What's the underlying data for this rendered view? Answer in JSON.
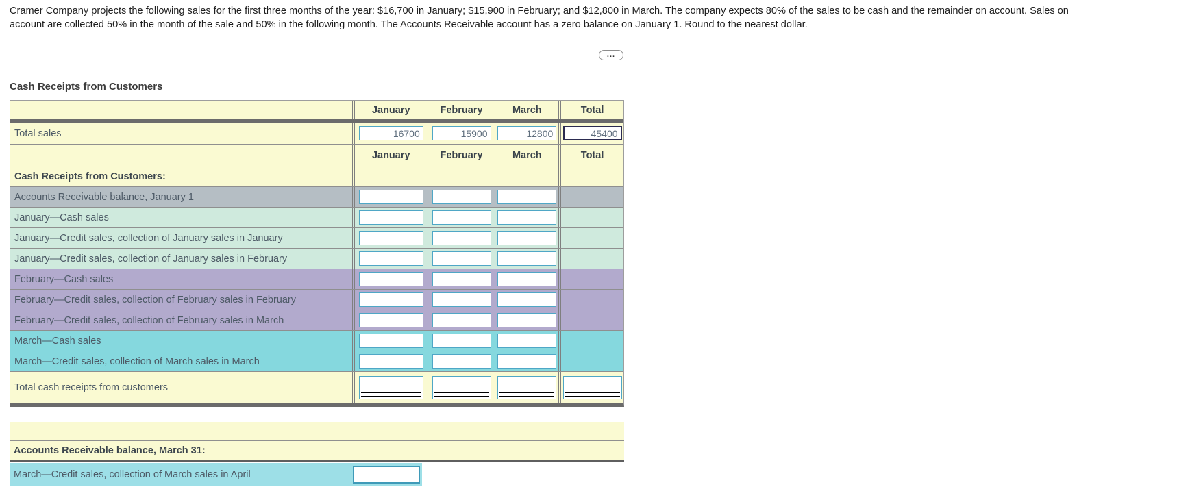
{
  "problem": {
    "line1": "Cramer Company projects the following sales for the first three months of the year: $16,700 in January; $15,900 in February; and $12,800 in March. The company expects 80% of the sales to be cash and the remainder on account. Sales on",
    "line2": "account are collected 50% in the month of the sale and 50% in the following month. The Accounts Receivable account has a zero balance on January 1. Round to the nearest dollar."
  },
  "divider": {
    "ellipsis_label": "..."
  },
  "table": {
    "title": "Cash Receipts from Customers",
    "columns": [
      "January",
      "February",
      "March",
      "Total"
    ],
    "total_sales": {
      "label": "Total sales",
      "january": "16700",
      "february": "15900",
      "march": "12800",
      "total": "45400"
    },
    "section_label": "Cash Receipts from Customers:",
    "rows": [
      {
        "label": "Accounts Receivable balance, January 1",
        "tone": "gray"
      },
      {
        "label": "January—Cash sales",
        "tone": "green"
      },
      {
        "label": "January—Credit sales, collection of January sales in January",
        "tone": "green"
      },
      {
        "label": "January—Credit sales, collection of January sales in February",
        "tone": "green"
      },
      {
        "label": "February—Cash sales",
        "tone": "purple"
      },
      {
        "label": "February—Credit sales, collection of February sales in February",
        "tone": "purple"
      },
      {
        "label": "February—Credit sales, collection of February sales in March",
        "tone": "purple"
      },
      {
        "label": "March—Cash sales",
        "tone": "cyan"
      },
      {
        "label": "March—Credit sales, collection of March sales in March",
        "tone": "cyan"
      }
    ],
    "total_row": {
      "label": "Total cash receipts from customers"
    }
  },
  "ar_section": {
    "header": "Accounts Receivable balance, March 31:",
    "row_label": "March—Credit sales, collection of March sales in April"
  },
  "colors": {
    "table_background": "#fafad2",
    "row_gray": "#b5bec4",
    "row_green": "#cfeadd",
    "row_purple": "#b2aacd",
    "row_cyan": "#85d8de",
    "bottom_row_cyan": "#9ddfe7",
    "input_border": "#4fa7c6",
    "checked_input_border": "#2b2b50",
    "grid_border": "#7f7f7f"
  }
}
